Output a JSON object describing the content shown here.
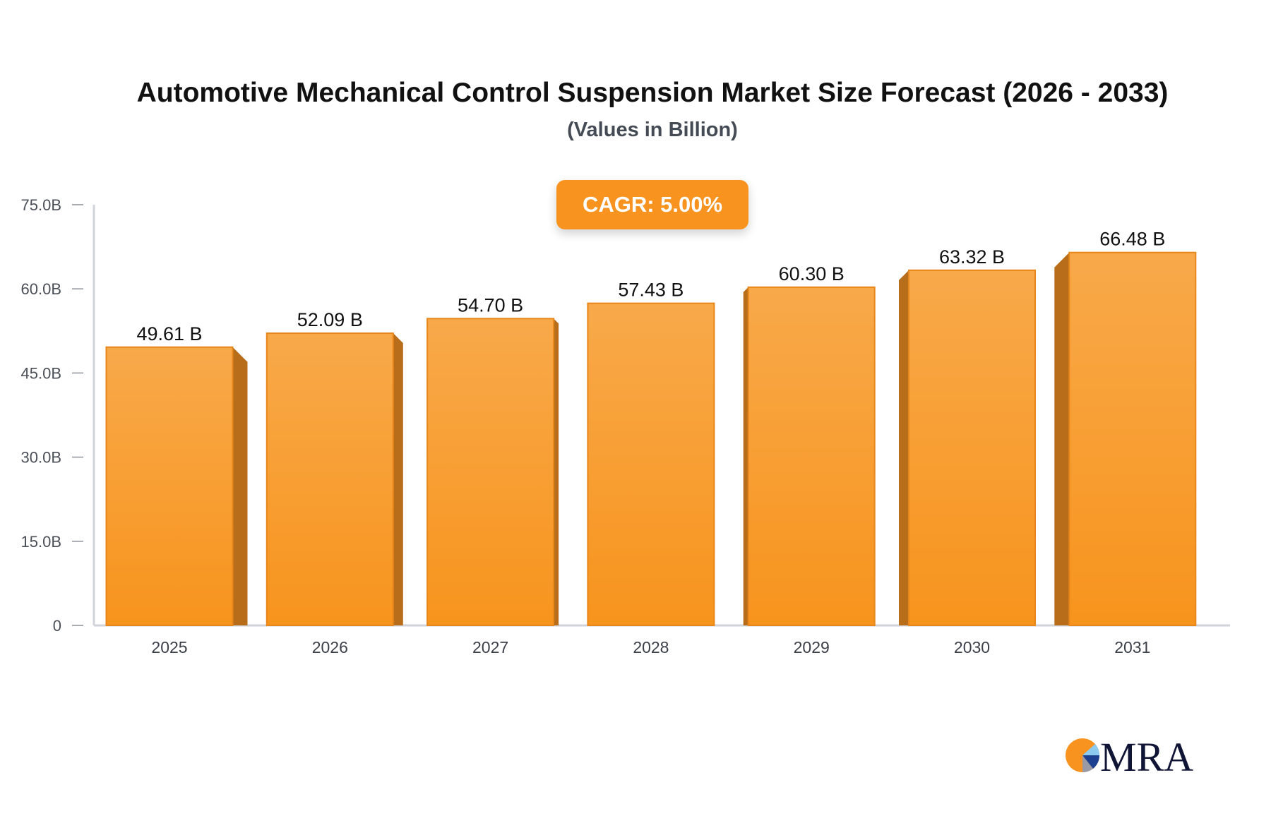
{
  "chart_data": {
    "type": "bar",
    "title": "Automotive Mechanical Control Suspension Market Size Forecast (2026 - 2033)",
    "subtitle": "(Values in Billion)",
    "categories": [
      "2025",
      "2026",
      "2027",
      "2028",
      "2029",
      "2030",
      "2031"
    ],
    "values": [
      49.61,
      52.09,
      54.7,
      57.43,
      60.3,
      63.32,
      66.48
    ],
    "data_labels": [
      "49.61 B",
      "52.09 B",
      "54.70 B",
      "57.43 B",
      "60.30 B",
      "63.32 B",
      "66.48 B"
    ],
    "ylim": [
      0,
      75
    ],
    "yticks": [
      0,
      15,
      30,
      45,
      60,
      75
    ],
    "ytick_labels": [
      "0",
      "15.0B",
      "30.0B",
      "45.0B",
      "60.0B",
      "75.0B"
    ],
    "xlabel": "",
    "ylabel": "",
    "grid": false,
    "annotation": "CAGR: 5.00%",
    "colors": {
      "bar_top": "#f8a94a",
      "bar_bottom": "#f7941d",
      "bar_side": "#b86d1a",
      "axis": "#d0d3da"
    }
  },
  "logo": {
    "text": "MRA"
  }
}
